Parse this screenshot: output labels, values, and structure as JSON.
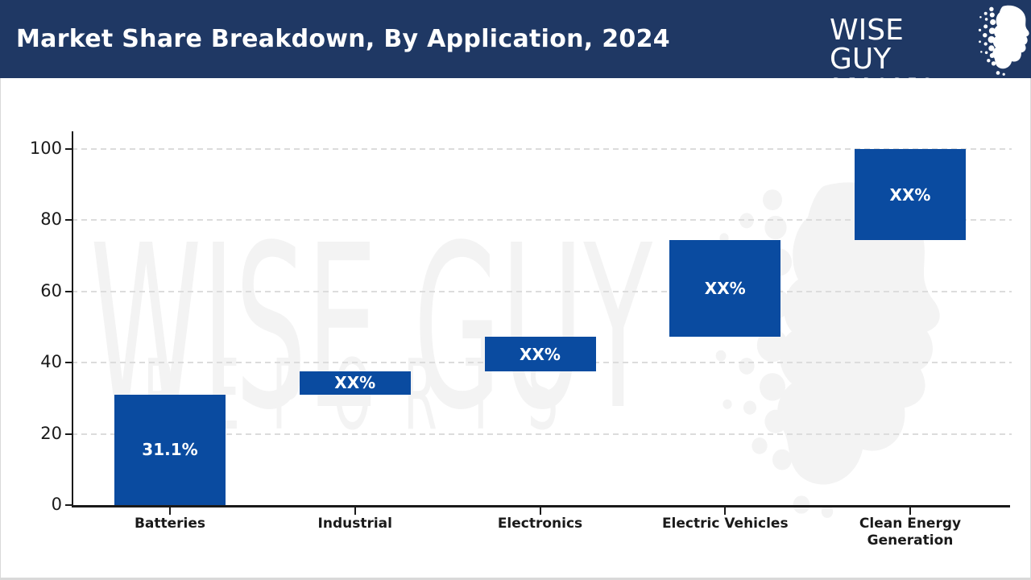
{
  "header": {
    "title": "Market Share Breakdown, By Application, 2024",
    "bg_color": "#1f3864",
    "logo": {
      "line1": "WISE GUY",
      "line2": "REPORTS"
    }
  },
  "watermark": {
    "line1": "WISE GUY",
    "line2": "REPORTS"
  },
  "chart_data": {
    "type": "bar",
    "subtype": "waterfall",
    "title": "Market Share Breakdown, By Application, 2024",
    "xlabel": "",
    "ylabel": "",
    "categories": [
      "Batteries",
      "Industrial",
      "Electronics",
      "Electric Vehicles",
      "Clean Energy Generation"
    ],
    "segments": [
      {
        "category": "Batteries",
        "start": 0,
        "end": 31.1,
        "label": "31.1%"
      },
      {
        "category": "Industrial",
        "start": 31.1,
        "end": 37.5,
        "label": "XX%"
      },
      {
        "category": "Electronics",
        "start": 37.5,
        "end": 47.3,
        "label": "XX%"
      },
      {
        "category": "Electric Vehicles",
        "start": 47.3,
        "end": 74.4,
        "label": "XX%"
      },
      {
        "category": "Clean Energy Generation",
        "start": 74.4,
        "end": 100,
        "label": "XX%"
      }
    ],
    "y_ticks": [
      0,
      20,
      40,
      60,
      80,
      100
    ],
    "ylim": [
      0,
      105
    ],
    "grid": "horizontal dashed",
    "legend": "none",
    "bar_color": "#0a4ba0",
    "grid_color": "#dcdcdc",
    "axis_color": "#1a1a1a"
  }
}
